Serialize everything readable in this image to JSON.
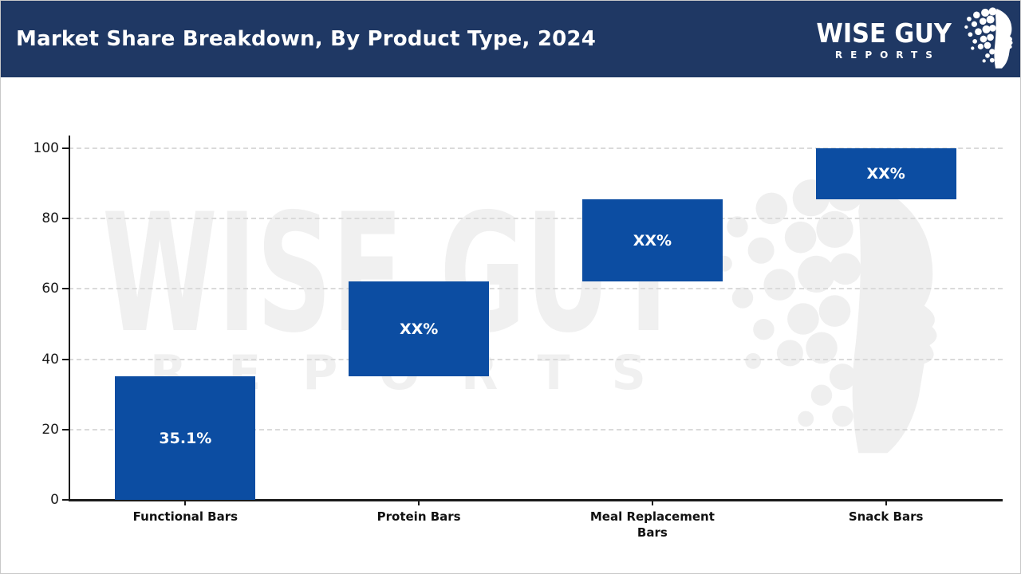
{
  "header": {
    "title": "Market Share Breakdown, By Product Type, 2024",
    "background_color": "#1f3864",
    "logo": {
      "line1": "WISE GUY",
      "line2": "REPORTS",
      "head_icon": "dotted-head-profile-icon"
    }
  },
  "watermark": {
    "line1": "WISE GUY",
    "line2": "REPORTS",
    "head_icon": "dotted-head-profile-icon"
  },
  "chart_data": {
    "type": "bar",
    "subtype": "floating-waterfall",
    "title": "Market Share Breakdown, By Product Type, 2024",
    "categories": [
      "Functional Bars",
      "Protein Bars",
      "Meal Replacement Bars",
      "Snack Bars"
    ],
    "segments": [
      {
        "category": "Functional Bars",
        "start": 0,
        "end": 35.1,
        "size": 35.1,
        "label": "35.1%"
      },
      {
        "category": "Protein Bars",
        "start": 35.1,
        "end": 62.1,
        "size": 27.0,
        "label": "XX%"
      },
      {
        "category": "Meal Replacement Bars",
        "start": 62.1,
        "end": 85.5,
        "size": 23.4,
        "label": "XX%"
      },
      {
        "category": "Snack Bars",
        "start": 85.5,
        "end": 100,
        "size": 14.5,
        "label": "XX%"
      }
    ],
    "ylim": [
      0,
      100
    ],
    "yticks": [
      0,
      20,
      40,
      60,
      80,
      100
    ],
    "xlabel": "",
    "ylabel": "",
    "grid": "horizontal-dashed",
    "legend": "none",
    "bar_color": "#0c4da2",
    "bar_label_color": "#ffffff"
  }
}
